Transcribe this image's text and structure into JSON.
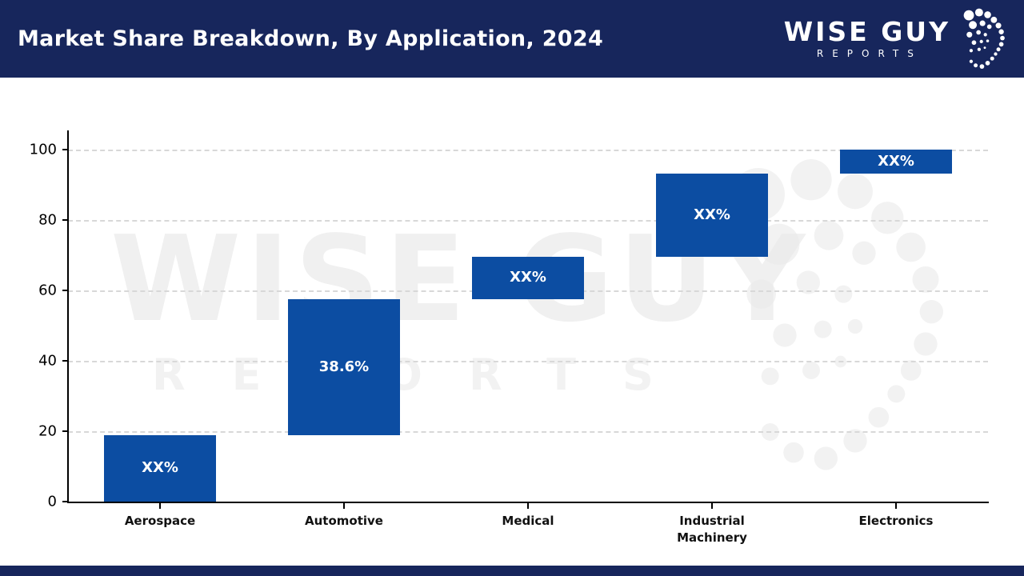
{
  "header": {
    "logo": {
      "line1": "WISE GUY",
      "line2": "REPORTS"
    }
  },
  "watermark": {
    "line1": "WISE GUY",
    "line2": "REPORTS"
  },
  "chart_data": {
    "type": "bar",
    "subtype": "waterfall",
    "title": "Market Share Breakdown, By Application, 2024",
    "xlabel": "",
    "ylabel": "",
    "ylim": [
      0,
      100
    ],
    "yticks": [
      0,
      20,
      40,
      60,
      80,
      100
    ],
    "grid": "horizontal-dashed",
    "legend": "none",
    "bar_color": "#0c4da2",
    "label_color": "#ffffff",
    "categories": [
      "Aerospace",
      "Automotive",
      "Medical",
      "Industrial Machinery",
      "Electronics"
    ],
    "segments": [
      {
        "category": "Aerospace",
        "start": 0,
        "end": 18.9,
        "value": 18.9,
        "label": "XX%"
      },
      {
        "category": "Automotive",
        "start": 18.9,
        "end": 57.5,
        "value": 38.6,
        "label": "38.6%"
      },
      {
        "category": "Medical",
        "start": 57.5,
        "end": 69.6,
        "value": 12.1,
        "label": "XX%"
      },
      {
        "category": "Industrial Machinery",
        "start": 69.6,
        "end": 93.1,
        "value": 23.5,
        "label": "XX%"
      },
      {
        "category": "Electronics",
        "start": 93.1,
        "end": 100,
        "value": 6.9,
        "label": "XX%"
      }
    ]
  }
}
